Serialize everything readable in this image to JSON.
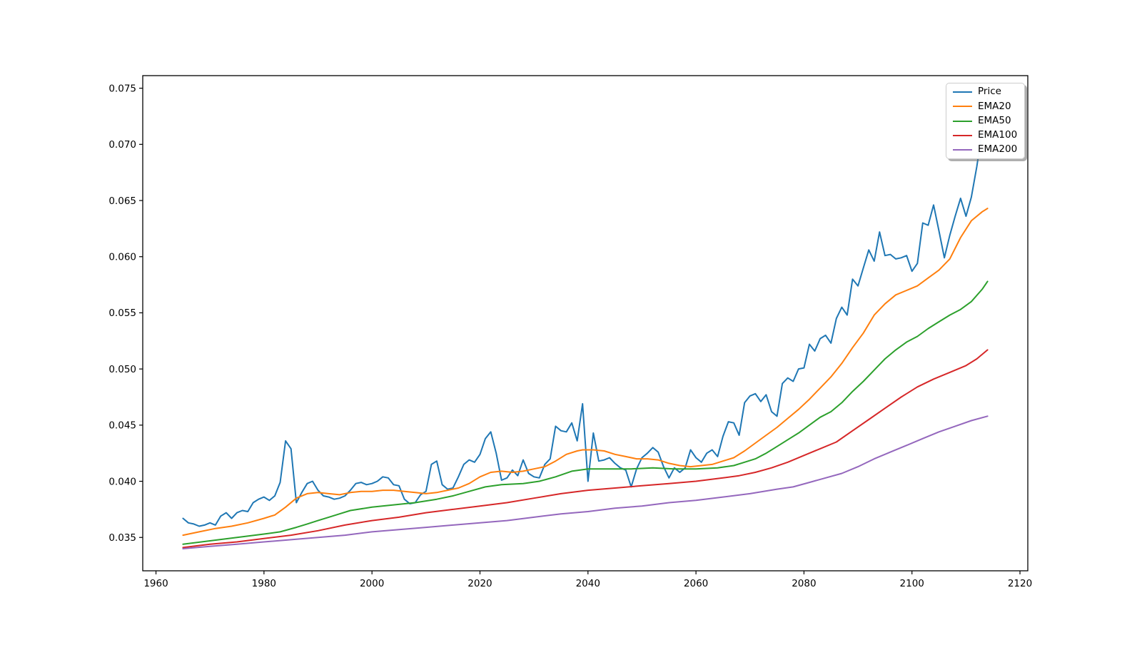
{
  "figure": {
    "background": "#ffffff",
    "plot_bg": "#ffffff",
    "spine_color": "#000000"
  },
  "legend": {
    "position": "upper right",
    "labels": [
      "Price",
      "EMA20",
      "EMA50",
      "EMA100",
      "EMA200"
    ]
  },
  "chart_data": {
    "type": "line",
    "title": "",
    "xlabel": "",
    "ylabel": "",
    "grid": false,
    "legend_position": "upper right",
    "xlim": [
      1957.55,
      2121.45
    ],
    "ylim": [
      0.03203,
      0.07612
    ],
    "x_ticks": [
      1960,
      1980,
      2000,
      2020,
      2040,
      2060,
      2080,
      2100,
      2120
    ],
    "x_tick_labels": [
      "1960",
      "1980",
      "2000",
      "2020",
      "2040",
      "2060",
      "2080",
      "2100",
      "2120"
    ],
    "y_ticks": [
      0.035,
      0.04,
      0.045,
      0.05,
      0.055,
      0.06,
      0.065,
      0.07,
      0.075
    ],
    "y_tick_labels": [
      "0.035",
      "0.040",
      "0.045",
      "0.050",
      "0.055",
      "0.060",
      "0.065",
      "0.070",
      "0.075"
    ],
    "series": [
      {
        "name": "Price",
        "color": "#1f77b4",
        "x_start": 1965,
        "x_step": 1,
        "values": [
          0.0367,
          0.0363,
          0.0362,
          0.036,
          0.0361,
          0.0363,
          0.0361,
          0.0369,
          0.0372,
          0.0367,
          0.0372,
          0.0374,
          0.0373,
          0.0381,
          0.0384,
          0.0386,
          0.0383,
          0.0387,
          0.0399,
          0.0436,
          0.0429,
          0.0381,
          0.039,
          0.0398,
          0.04,
          0.0392,
          0.0387,
          0.0386,
          0.0384,
          0.0385,
          0.0387,
          0.0392,
          0.0398,
          0.0399,
          0.0397,
          0.0398,
          0.04,
          0.0404,
          0.0403,
          0.0397,
          0.0396,
          0.0384,
          0.038,
          0.0381,
          0.0388,
          0.0391,
          0.0415,
          0.0418,
          0.0397,
          0.0393,
          0.0394,
          0.0404,
          0.0415,
          0.0419,
          0.0417,
          0.0424,
          0.0438,
          0.0444,
          0.0425,
          0.0401,
          0.0403,
          0.041,
          0.0405,
          0.0419,
          0.0407,
          0.0404,
          0.0403,
          0.0415,
          0.042,
          0.0449,
          0.0445,
          0.0444,
          0.0452,
          0.0436,
          0.0469,
          0.04,
          0.0443,
          0.0418,
          0.0419,
          0.0421,
          0.0416,
          0.0412,
          0.041,
          0.0395,
          0.0411,
          0.0421,
          0.0425,
          0.043,
          0.0426,
          0.0413,
          0.0403,
          0.0412,
          0.0408,
          0.0412,
          0.0428,
          0.0421,
          0.0417,
          0.0425,
          0.0428,
          0.0422,
          0.044,
          0.0453,
          0.0452,
          0.0441,
          0.047,
          0.0476,
          0.0478,
          0.0471,
          0.0477,
          0.0462,
          0.0458,
          0.0487,
          0.0492,
          0.0489,
          0.05,
          0.0501,
          0.0522,
          0.0516,
          0.0527,
          0.053,
          0.0523,
          0.0545,
          0.0555,
          0.0548,
          0.058,
          0.0574,
          0.059,
          0.0606,
          0.0596,
          0.0622,
          0.0601,
          0.0602,
          0.0598,
          0.0599,
          0.0601,
          0.0587,
          0.0594,
          0.063,
          0.0628,
          0.0646,
          0.0623,
          0.0599,
          0.0619,
          0.0636,
          0.0652,
          0.0636,
          0.0653,
          0.068,
          0.0712,
          0.0741
        ]
      },
      {
        "name": "EMA20",
        "color": "#ff7f0e",
        "points": [
          [
            1965,
            0.0352
          ],
          [
            1968,
            0.0355
          ],
          [
            1971,
            0.0358
          ],
          [
            1974,
            0.036
          ],
          [
            1977,
            0.0363
          ],
          [
            1980,
            0.0367
          ],
          [
            1982,
            0.037
          ],
          [
            1984,
            0.0377
          ],
          [
            1986,
            0.0385
          ],
          [
            1988,
            0.0389
          ],
          [
            1990,
            0.039
          ],
          [
            1992,
            0.0389
          ],
          [
            1994,
            0.0388
          ],
          [
            1996,
            0.039
          ],
          [
            1998,
            0.0391
          ],
          [
            2000,
            0.0391
          ],
          [
            2002,
            0.0392
          ],
          [
            2004,
            0.0392
          ],
          [
            2006,
            0.0391
          ],
          [
            2008,
            0.039
          ],
          [
            2010,
            0.0389
          ],
          [
            2012,
            0.039
          ],
          [
            2014,
            0.0392
          ],
          [
            2016,
            0.0394
          ],
          [
            2018,
            0.0398
          ],
          [
            2020,
            0.0404
          ],
          [
            2022,
            0.0408
          ],
          [
            2024,
            0.0409
          ],
          [
            2026,
            0.0408
          ],
          [
            2028,
            0.0409
          ],
          [
            2030,
            0.0411
          ],
          [
            2032,
            0.0413
          ],
          [
            2034,
            0.0418
          ],
          [
            2036,
            0.0424
          ],
          [
            2038,
            0.0427
          ],
          [
            2039,
            0.0428
          ],
          [
            2041,
            0.0428
          ],
          [
            2043,
            0.0427
          ],
          [
            2045,
            0.0424
          ],
          [
            2047,
            0.0422
          ],
          [
            2049,
            0.042
          ],
          [
            2051,
            0.042
          ],
          [
            2053,
            0.0419
          ],
          [
            2055,
            0.0416
          ],
          [
            2057,
            0.0414
          ],
          [
            2059,
            0.0413
          ],
          [
            2061,
            0.0414
          ],
          [
            2063,
            0.0415
          ],
          [
            2065,
            0.0418
          ],
          [
            2067,
            0.0421
          ],
          [
            2069,
            0.0427
          ],
          [
            2071,
            0.0434
          ],
          [
            2073,
            0.0441
          ],
          [
            2075,
            0.0448
          ],
          [
            2077,
            0.0456
          ],
          [
            2079,
            0.0464
          ],
          [
            2081,
            0.0473
          ],
          [
            2083,
            0.0483
          ],
          [
            2085,
            0.0493
          ],
          [
            2087,
            0.0505
          ],
          [
            2089,
            0.0519
          ],
          [
            2091,
            0.0532
          ],
          [
            2093,
            0.0548
          ],
          [
            2095,
            0.0558
          ],
          [
            2097,
            0.0566
          ],
          [
            2099,
            0.057
          ],
          [
            2101,
            0.0574
          ],
          [
            2103,
            0.0581
          ],
          [
            2105,
            0.0588
          ],
          [
            2107,
            0.0598
          ],
          [
            2109,
            0.0617
          ],
          [
            2111,
            0.0632
          ],
          [
            2113,
            0.064
          ],
          [
            2114,
            0.0643
          ]
        ]
      },
      {
        "name": "EMA50",
        "color": "#2ca02c",
        "points": [
          [
            1965,
            0.0344
          ],
          [
            1970,
            0.0347
          ],
          [
            1975,
            0.035
          ],
          [
            1980,
            0.0353
          ],
          [
            1983,
            0.0355
          ],
          [
            1986,
            0.0359
          ],
          [
            1988,
            0.0362
          ],
          [
            1990,
            0.0365
          ],
          [
            1992,
            0.0368
          ],
          [
            1994,
            0.0371
          ],
          [
            1996,
            0.0374
          ],
          [
            2000,
            0.0377
          ],
          [
            2004,
            0.0379
          ],
          [
            2008,
            0.0381
          ],
          [
            2012,
            0.0384
          ],
          [
            2015,
            0.0387
          ],
          [
            2018,
            0.0391
          ],
          [
            2021,
            0.0395
          ],
          [
            2024,
            0.0397
          ],
          [
            2028,
            0.0398
          ],
          [
            2031,
            0.04
          ],
          [
            2034,
            0.0404
          ],
          [
            2037,
            0.0409
          ],
          [
            2040,
            0.0411
          ],
          [
            2044,
            0.0411
          ],
          [
            2048,
            0.0411
          ],
          [
            2052,
            0.0412
          ],
          [
            2056,
            0.0411
          ],
          [
            2060,
            0.0411
          ],
          [
            2064,
            0.0412
          ],
          [
            2067,
            0.0414
          ],
          [
            2069,
            0.0417
          ],
          [
            2071,
            0.042
          ],
          [
            2073,
            0.0425
          ],
          [
            2075,
            0.0431
          ],
          [
            2077,
            0.0437
          ],
          [
            2079,
            0.0443
          ],
          [
            2081,
            0.045
          ],
          [
            2083,
            0.0457
          ],
          [
            2085,
            0.0462
          ],
          [
            2087,
            0.047
          ],
          [
            2089,
            0.048
          ],
          [
            2091,
            0.0489
          ],
          [
            2093,
            0.0499
          ],
          [
            2095,
            0.0509
          ],
          [
            2097,
            0.0517
          ],
          [
            2099,
            0.0524
          ],
          [
            2101,
            0.0529
          ],
          [
            2103,
            0.0536
          ],
          [
            2105,
            0.0542
          ],
          [
            2107,
            0.0548
          ],
          [
            2109,
            0.0553
          ],
          [
            2111,
            0.056
          ],
          [
            2113,
            0.0571
          ],
          [
            2114,
            0.0578
          ]
        ]
      },
      {
        "name": "EMA100",
        "color": "#d62728",
        "points": [
          [
            1965,
            0.0341
          ],
          [
            1970,
            0.0344
          ],
          [
            1975,
            0.0346
          ],
          [
            1980,
            0.0349
          ],
          [
            1985,
            0.0352
          ],
          [
            1990,
            0.0356
          ],
          [
            1995,
            0.0361
          ],
          [
            2000,
            0.0365
          ],
          [
            2005,
            0.0368
          ],
          [
            2010,
            0.0372
          ],
          [
            2015,
            0.0375
          ],
          [
            2020,
            0.0378
          ],
          [
            2025,
            0.0381
          ],
          [
            2030,
            0.0385
          ],
          [
            2035,
            0.0389
          ],
          [
            2040,
            0.0392
          ],
          [
            2045,
            0.0394
          ],
          [
            2050,
            0.0396
          ],
          [
            2055,
            0.0398
          ],
          [
            2060,
            0.04
          ],
          [
            2065,
            0.0403
          ],
          [
            2068,
            0.0405
          ],
          [
            2071,
            0.0408
          ],
          [
            2074,
            0.0412
          ],
          [
            2077,
            0.0417
          ],
          [
            2080,
            0.0423
          ],
          [
            2083,
            0.0429
          ],
          [
            2086,
            0.0435
          ],
          [
            2089,
            0.0445
          ],
          [
            2092,
            0.0455
          ],
          [
            2095,
            0.0465
          ],
          [
            2098,
            0.0475
          ],
          [
            2101,
            0.0484
          ],
          [
            2104,
            0.0491
          ],
          [
            2107,
            0.0497
          ],
          [
            2110,
            0.0503
          ],
          [
            2112,
            0.0509
          ],
          [
            2114,
            0.0517
          ]
        ]
      },
      {
        "name": "EMA200",
        "color": "#9467bd",
        "points": [
          [
            1965,
            0.034
          ],
          [
            1970,
            0.0342
          ],
          [
            1975,
            0.0344
          ],
          [
            1980,
            0.0346
          ],
          [
            1985,
            0.0348
          ],
          [
            1990,
            0.035
          ],
          [
            1995,
            0.0352
          ],
          [
            2000,
            0.0355
          ],
          [
            2005,
            0.0357
          ],
          [
            2010,
            0.0359
          ],
          [
            2015,
            0.0361
          ],
          [
            2020,
            0.0363
          ],
          [
            2025,
            0.0365
          ],
          [
            2030,
            0.0368
          ],
          [
            2035,
            0.0371
          ],
          [
            2040,
            0.0373
          ],
          [
            2045,
            0.0376
          ],
          [
            2050,
            0.0378
          ],
          [
            2055,
            0.0381
          ],
          [
            2060,
            0.0383
          ],
          [
            2065,
            0.0386
          ],
          [
            2070,
            0.0389
          ],
          [
            2075,
            0.0393
          ],
          [
            2078,
            0.0395
          ],
          [
            2081,
            0.0399
          ],
          [
            2084,
            0.0403
          ],
          [
            2087,
            0.0407
          ],
          [
            2090,
            0.0413
          ],
          [
            2093,
            0.042
          ],
          [
            2096,
            0.0426
          ],
          [
            2099,
            0.0432
          ],
          [
            2102,
            0.0438
          ],
          [
            2105,
            0.0444
          ],
          [
            2108,
            0.0449
          ],
          [
            2111,
            0.0454
          ],
          [
            2114,
            0.0458
          ]
        ]
      }
    ]
  }
}
